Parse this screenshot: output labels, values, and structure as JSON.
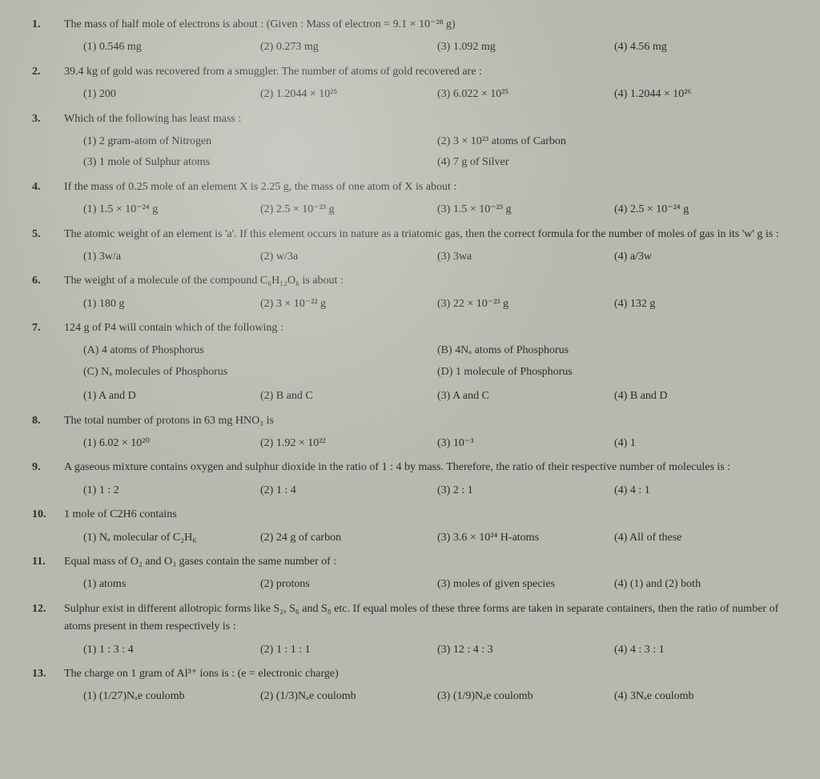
{
  "questions": [
    {
      "num": "1.",
      "text": "The mass of half mole of electrons is about : (Given : Mass of electron = 9.1 × 10⁻²⁸ g)",
      "options": [
        "(1) 0.546 mg",
        "(2) 0.273 mg",
        "(3) 1.092 mg",
        "(4) 4.56 mg"
      ],
      "layout": "four-col"
    },
    {
      "num": "2.",
      "text": "39.4 kg of gold was recovered from a smuggler. The number of atoms of gold recovered are :",
      "options": [
        "(1) 200",
        "(2) 1.2044 × 10²⁵",
        "(3) 6.022 × 10²⁵",
        "(4) 1.2044 × 10²⁶"
      ],
      "layout": "four-col"
    },
    {
      "num": "3.",
      "text": "Which of the following has least mass :",
      "options": [
        "(1) 2 gram-atom of Nitrogen",
        "(2) 3 × 10²³ atoms of Carbon",
        "(3) 1 mole of Sulphur atoms",
        "(4) 7 g of Silver"
      ],
      "layout": "two-col"
    },
    {
      "num": "4.",
      "text": "If the mass of 0.25 mole of an element X is 2.25 g, the mass of one atom of X is about :",
      "options": [
        "(1) 1.5 × 10⁻²⁴ g",
        "(2) 2.5 × 10⁻²³ g",
        "(3) 1.5 × 10⁻²³ g",
        "(4) 2.5 × 10⁻²⁴ g"
      ],
      "layout": "four-col"
    },
    {
      "num": "5.",
      "text": "The atomic weight of an element is 'a'. If this element occurs in nature as a triatomic gas, then the correct formula for the number of moles of gas in its 'w' g is :",
      "options": [
        "(1) 3w/a",
        "(2) w/3a",
        "(3) 3wa",
        "(4) a/3w"
      ],
      "layout": "four-col"
    },
    {
      "num": "6.",
      "text": "The weight of a molecule of the compound C₆H₁₂O₆ is about :",
      "options": [
        "(1) 180 g",
        "(2) 3 × 10⁻²² g",
        "(3) 22 × 10⁻²³ g",
        "(4) 132 g"
      ],
      "layout": "four-col"
    },
    {
      "num": "7.",
      "text": "124 g of P4 will contain which of the following :",
      "subopts": [
        "(A) 4 atoms of Phosphorus",
        "(B) 4Nₐ atoms of Phosphorus",
        "(C) Nₐ molecules of Phosphorus",
        "(D) 1 molecule of Phosphorus"
      ],
      "options": [
        "(1) A and D",
        "(2) B and C",
        "(3) A and C",
        "(4) B and D"
      ],
      "layout": "four-col"
    },
    {
      "num": "8.",
      "text": "The total number of protons in 63 mg HNO₃ is",
      "options": [
        "(1) 6.02 × 10²⁰",
        "(2) 1.92 × 10²²",
        "(3) 10⁻³",
        "(4) 1"
      ],
      "layout": "four-col"
    },
    {
      "num": "9.",
      "text": "A gaseous mixture contains oxygen and sulphur dioxide in the ratio of 1 : 4 by mass. Therefore, the ratio of their respective number of molecules is :",
      "options": [
        "(1) 1 : 2",
        "(2) 1 : 4",
        "(3) 2 : 1",
        "(4) 4 : 1"
      ],
      "layout": "four-col"
    },
    {
      "num": "10.",
      "text": "1 mole of C2H6 contains",
      "options": [
        "(1) Nₐ molecular of C₂H₆",
        "(2) 24 g of carbon",
        "(3) 3.6 × 10²⁴ H-atoms",
        "(4) All of these"
      ],
      "layout": "four-col"
    },
    {
      "num": "11.",
      "text": "Equal mass of O₂ and O₃ gases contain the same number of :",
      "options": [
        "(1) atoms",
        "(2) protons",
        "(3) moles of given species",
        "(4) (1) and (2) both"
      ],
      "layout": "four-col"
    },
    {
      "num": "12.",
      "text": "Sulphur exist in different allotropic forms like S₂, S₆ and S₈ etc. If equal moles of these three forms are taken in separate containers, then the ratio of number of atoms present in them respectively is :",
      "options": [
        "(1) 1 : 3 : 4",
        "(2) 1 : 1 : 1",
        "(3) 12 : 4 : 3",
        "(4) 4 : 3 : 1"
      ],
      "layout": "four-col"
    },
    {
      "num": "13.",
      "text": "The charge on 1 gram of Al³⁺ ions is : (e = electronic charge)",
      "options": [
        "(1) (1/27)Nₐe coulomb",
        "(2) (1/3)Nₐe coulomb",
        "(3) (1/9)Nₐe coulomb",
        "(4) 3Nₐe coulomb"
      ],
      "layout": "four-col"
    }
  ]
}
